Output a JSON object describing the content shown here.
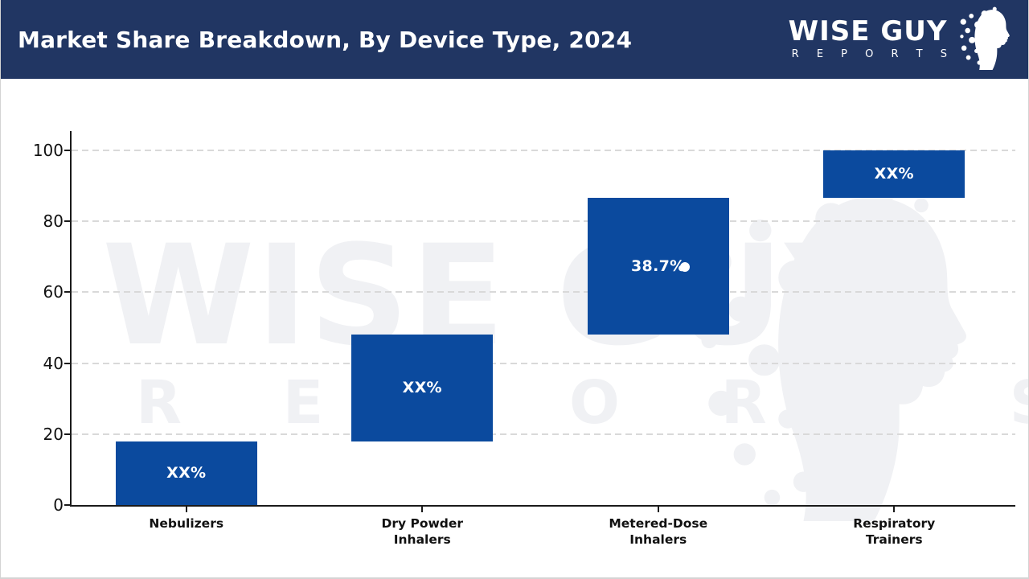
{
  "header": {
    "title": "Market Share Breakdown, By Device Type, 2024",
    "logo": {
      "line1": "WISE GUY",
      "line2": "REPORTS"
    }
  },
  "watermark": {
    "line1": "WISE GUY",
    "line2": "REPORTS"
  },
  "chart_data": {
    "type": "bar",
    "subtype": "floating-waterfall",
    "title": "Market Share Breakdown, By Device Type, 2024",
    "categories": [
      "Nebulizers",
      "Dry Powder Inhalers",
      "Metered-Dose Inhalers",
      "Respiratory Trainers"
    ],
    "series": [
      {
        "name": "Market share (%)",
        "segments": [
          {
            "category": "Nebulizers",
            "start": 0,
            "end": 18,
            "label": "XX%"
          },
          {
            "category": "Dry Powder Inhalers",
            "start": 18,
            "end": 48,
            "label": "XX%"
          },
          {
            "category": "Metered-Dose Inhalers",
            "start": 48,
            "end": 86.7,
            "label": "38.7%"
          },
          {
            "category": "Respiratory Trainers",
            "start": 86.7,
            "end": 100,
            "label": "XX%"
          }
        ]
      }
    ],
    "xlabel": "",
    "ylabel": "",
    "ylim": [
      0,
      100
    ],
    "yticks": [
      0,
      20,
      40,
      60,
      80,
      100
    ],
    "grid": "horizontal-dashed",
    "legend": "none",
    "colors": {
      "bar": "#0b4a9e",
      "bar_label": "#ffffff",
      "grid": "#d9d9d9",
      "axis": "#1a1a1a",
      "header_bg": "#213663",
      "watermark": "#f0f1f4"
    }
  }
}
